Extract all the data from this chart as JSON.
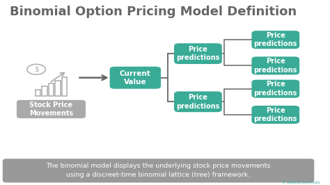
{
  "title": "Binomial Option Pricing Model Definition",
  "title_fontsize": 13,
  "title_color": "#666666",
  "bg_color": "#ffffff",
  "footer_bg_color": "#999999",
  "footer_text": "The binomial model displays the underlying stock price movements\nusing a discreet-time binomial lattice (tree) framework.",
  "footer_text_color": "#ffffff",
  "footer_fontsize": 6.8,
  "teal_color": "#3aab96",
  "gray_label_bg": "#aaaaaa",
  "arrow_color": "#666666",
  "stock_label": "Stock Price\nMovements",
  "current_label": "Current\nValue",
  "mid_label": "Price\npredictions",
  "leaf_label": "Price\npredictions",
  "wallstreetmojo_color": "#3aab96",
  "bar_color": "#aaaaaa",
  "xlim": [
    0,
    10
  ],
  "ylim": [
    0,
    10
  ]
}
